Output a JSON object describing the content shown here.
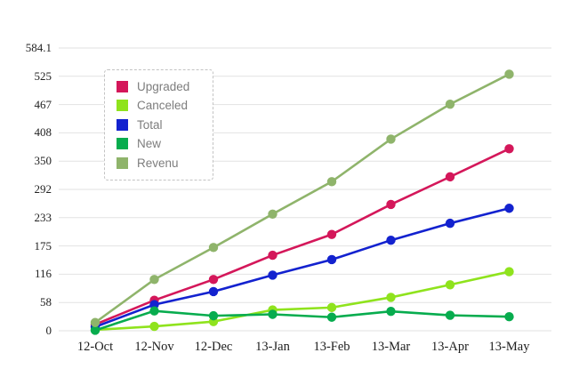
{
  "chart_data": {
    "type": "line",
    "title": "",
    "xlabel": "",
    "ylabel": "",
    "categories": [
      "12-Oct",
      "12-Nov",
      "12-Dec",
      "13-Jan",
      "13-Feb",
      "13-Mar",
      "13-Apr",
      "13-May"
    ],
    "yticks_bottom_up": [
      "0",
      "58",
      "116",
      "175",
      "233",
      "292",
      "350",
      "408",
      "467",
      "525",
      "584.1"
    ],
    "ylim": [
      0,
      584.1
    ],
    "grid": "horizontal-only",
    "legend_position": "top-left-inside",
    "series": [
      {
        "name": "Upgraded",
        "color": "#d4175a",
        "values": [
          13,
          63,
          106,
          156,
          199,
          261,
          318,
          376
        ]
      },
      {
        "name": "Canceled",
        "color": "#8fe31d",
        "values": [
          2,
          9,
          19,
          43,
          48,
          69,
          95,
          122
        ]
      },
      {
        "name": "Total",
        "color": "#1322cf",
        "values": [
          8,
          54,
          81,
          115,
          147,
          187,
          222,
          253
        ]
      },
      {
        "name": "New",
        "color": "#07ac4e",
        "values": [
          1,
          41,
          31,
          34,
          28,
          40,
          32,
          29
        ]
      },
      {
        "name": "Revenu",
        "color": "#8fb46b",
        "values": [
          17,
          106,
          172,
          241,
          308,
          396,
          468,
          530
        ]
      }
    ]
  },
  "style": {
    "background": "#ffffff",
    "gridline_color": "#e2e2e2",
    "axis_label_color": "#222222",
    "legend_text_color": "#7d7d7d",
    "legend_border_color": "#c3c3c3"
  }
}
